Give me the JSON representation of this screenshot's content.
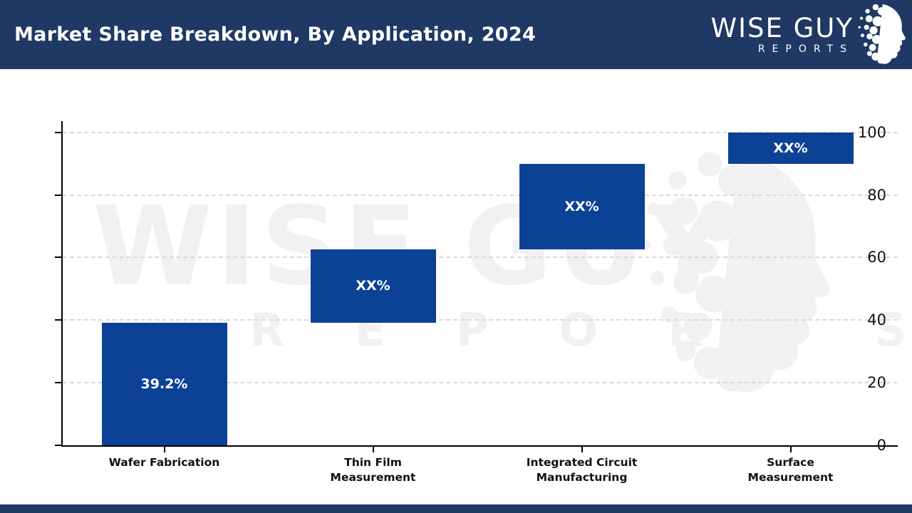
{
  "header": {
    "title": "Market Share Breakdown, By Application, 2024",
    "logo": {
      "brand": "WISE GUY",
      "sub": "REPORTS"
    }
  },
  "watermark": {
    "brand": "WISE GUY",
    "sub": "R E P O R T S"
  },
  "colors": {
    "header_bg": "#1f3864",
    "footer_bg": "#1f3864",
    "bar_fill": "#0b4295",
    "bar_label": "#ffffff",
    "grid_line": "#d9d9d9",
    "axis_line": "#000000",
    "tick_label": "#111111",
    "category_label": "#111111",
    "watermark_color": "#f1f1f4"
  },
  "chart_data": {
    "type": "bar",
    "subtype": "waterfall",
    "title": "Market Share Breakdown, By Application, 2024",
    "categories": [
      "Wafer Fabrication",
      "Thin Film Measurement",
      "Integrated Circuit Manufacturing",
      "Surface Measurement"
    ],
    "category_label_lines": [
      [
        "Wafer Fabrication"
      ],
      [
        "Thin Film",
        "Measurement"
      ],
      [
        "Integrated Circuit",
        "Manufacturing"
      ],
      [
        "Surface",
        "Measurement"
      ]
    ],
    "bars": [
      {
        "category": "Wafer Fabrication",
        "start": 0,
        "end": 39.2,
        "label": "39.2%"
      },
      {
        "category": "Thin Film Measurement",
        "start": 39.2,
        "end": 62.6,
        "label": "XX%"
      },
      {
        "category": "Integrated Circuit Manufacturing",
        "start": 62.6,
        "end": 90,
        "label": "XX%"
      },
      {
        "category": "Surface Measurement",
        "start": 90,
        "end": 100,
        "label": "XX%"
      }
    ],
    "xlabel": "",
    "ylabel": "",
    "ylim": [
      0,
      103.6
    ],
    "yticks": [
      0,
      20,
      40,
      60,
      80,
      100
    ],
    "grid": "dashed-horizontal",
    "legend": "none",
    "unit": "percent"
  }
}
